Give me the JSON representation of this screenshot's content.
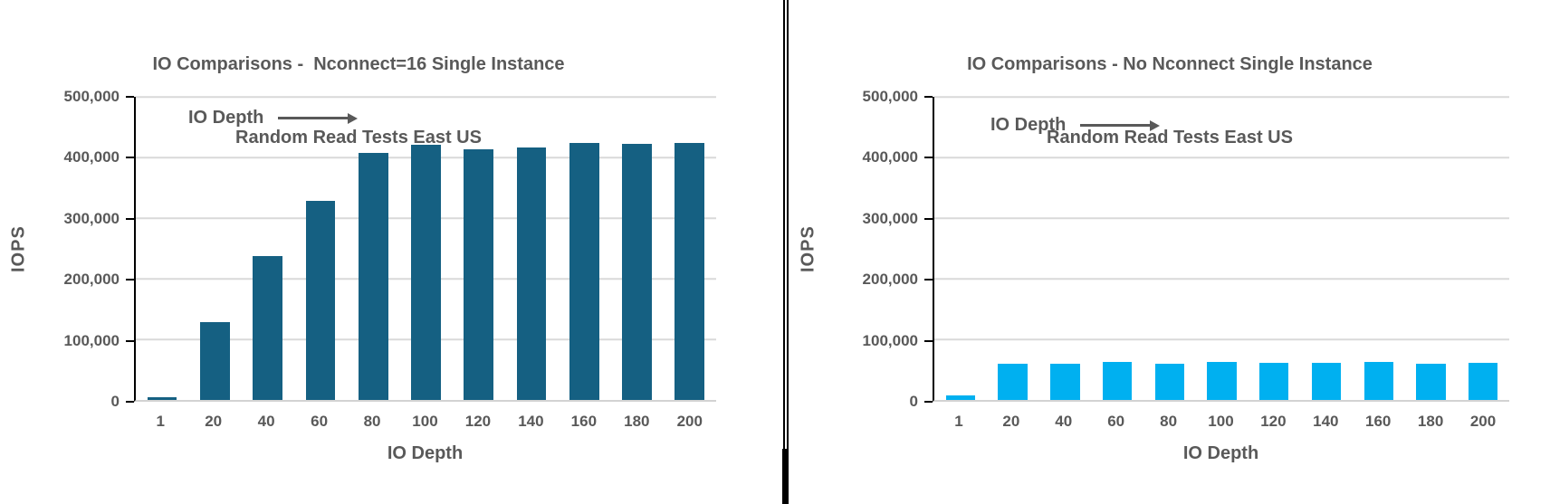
{
  "style": {
    "text_color": "#595959",
    "gridline_color": "#d9d9d9",
    "axis_color": "#000000",
    "baseline_color": "#d3d3d3",
    "background": "#ffffff"
  },
  "chart_data": [
    {
      "type": "bar",
      "title_lines": [
        "IO Comparisons -  Nconnect=16 Single Instance",
        "Random Read Tests East US"
      ],
      "ylabel": "IOPS",
      "xlabel": "IO Depth",
      "annotation": "IO Depth",
      "categories": [
        "1",
        "20",
        "40",
        "60",
        "80",
        "100",
        "120",
        "140",
        "160",
        "180",
        "200"
      ],
      "values": [
        5000,
        129000,
        238000,
        329000,
        408000,
        421000,
        413000,
        416000,
        424000,
        422000,
        424000
      ],
      "ylim": [
        0,
        500000
      ],
      "ytick_step": 100000,
      "ytick_labels": [
        "0",
        "100,000",
        "200,000",
        "300,000",
        "400,000",
        "500,000"
      ],
      "bar_color": "#156082",
      "grid": true,
      "legend": "none"
    },
    {
      "type": "bar",
      "title_lines": [
        "IO Comparisons - No Nconnect Single Instance",
        "Random Read Tests East US"
      ],
      "ylabel": "IOPS",
      "xlabel": "IO Depth",
      "annotation": "IO Depth",
      "categories": [
        "1",
        "20",
        "40",
        "60",
        "80",
        "100",
        "120",
        "140",
        "160",
        "180",
        "200"
      ],
      "values": [
        7000,
        60000,
        60000,
        62000,
        60000,
        62000,
        61000,
        61000,
        62000,
        60000,
        61000
      ],
      "ylim": [
        0,
        500000
      ],
      "ytick_step": 100000,
      "ytick_labels": [
        "0",
        "100,000",
        "200,000",
        "300,000",
        "400,000",
        "500,000"
      ],
      "bar_color": "#00b0f0",
      "grid": true,
      "legend": "none"
    }
  ]
}
